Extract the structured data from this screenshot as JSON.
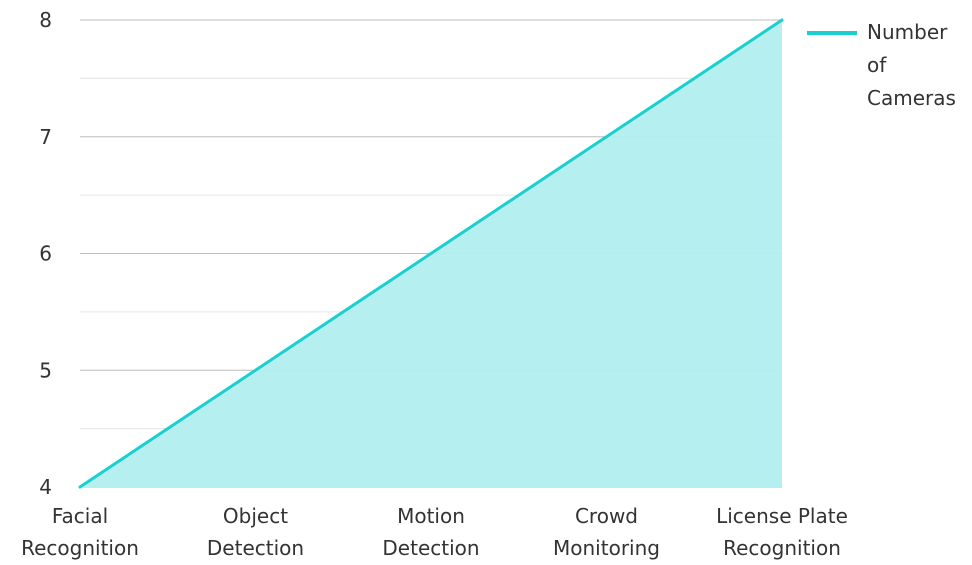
{
  "chart_data": {
    "type": "area",
    "categories": [
      [
        "Facial",
        "Recognition"
      ],
      [
        "Object",
        "Detection"
      ],
      [
        "Motion",
        "Detection"
      ],
      [
        "Crowd",
        "Monitoring"
      ],
      [
        "License Plate",
        "Recognition"
      ]
    ],
    "series": [
      {
        "name": "Number of Cameras",
        "legend_lines": [
          "Number",
          "of",
          "Cameras"
        ],
        "values": [
          4,
          5,
          6,
          7,
          8
        ]
      }
    ],
    "y_ticks": [
      "4",
      "5",
      "6",
      "7",
      "8"
    ],
    "ylim": [
      4,
      8
    ],
    "line_color": "#1ccfcf",
    "fill_color": "#b2eeee",
    "grid": true,
    "legend_position": "top-right"
  }
}
